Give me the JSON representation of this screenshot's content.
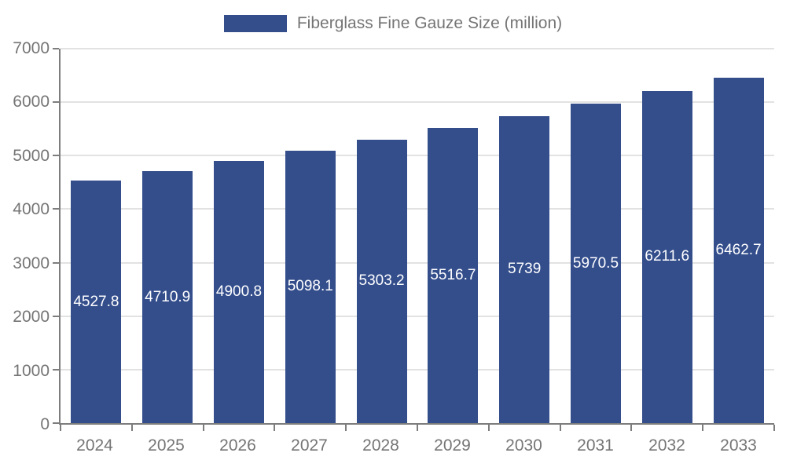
{
  "legend": {
    "label": "Fiberglass Fine Gauze Size (million)"
  },
  "chart_data": {
    "type": "bar",
    "title": "Fiberglass Fine Gauze Size (million)",
    "categories": [
      "2024",
      "2025",
      "2026",
      "2027",
      "2028",
      "2029",
      "2030",
      "2031",
      "2032",
      "2033"
    ],
    "values": [
      4527.8,
      4710.9,
      4900.8,
      5098.1,
      5303.2,
      5516.7,
      5739,
      5970.5,
      6211.6,
      6462.7
    ],
    "xlabel": "",
    "ylabel": "",
    "ylim": [
      0,
      7000
    ],
    "yticks": [
      0,
      1000,
      2000,
      3000,
      4000,
      5000,
      6000,
      7000
    ],
    "grid": true,
    "legend_position": "top",
    "bar_color": "#344e8c",
    "value_label_color": "#ffffff",
    "axis_text_color": "#757575",
    "axis_line_color": "#7d7d7d",
    "gridline_color": "#e2e2e2"
  }
}
